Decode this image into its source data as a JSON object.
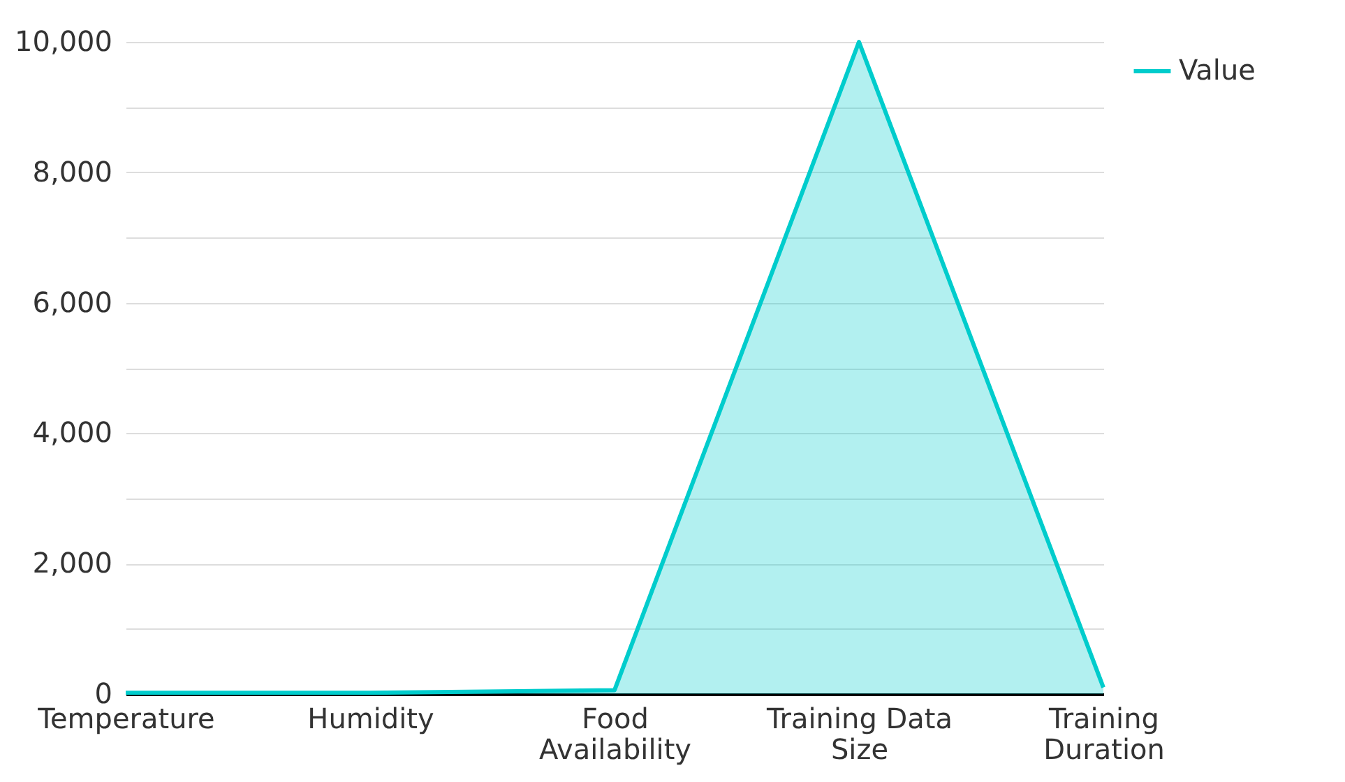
{
  "chart_data": {
    "type": "area",
    "categories": [
      "Temperature",
      "Humidity",
      "Food Availability",
      "Training Data Size",
      "Training Duration"
    ],
    "series": [
      {
        "name": "Value",
        "color": "#00cccc",
        "values": [
          20,
          20,
          60,
          10000,
          100
        ]
      }
    ],
    "ylim": [
      0,
      10000
    ],
    "yticks": [
      0,
      {
        "value": 1000,
        "label": null
      },
      {
        "value": 2000,
        "label": "2,000"
      },
      {
        "value": 3000,
        "label": null
      },
      {
        "value": 4000,
        "label": "4,000"
      },
      {
        "value": 5000,
        "label": null
      },
      {
        "value": 6000,
        "label": "6,000"
      },
      {
        "value": 7000,
        "label": null
      },
      {
        "value": 8000,
        "label": "8,000"
      },
      {
        "value": 9000,
        "label": null
      },
      {
        "value": 10000,
        "label": "10,000"
      }
    ],
    "grid": "y",
    "legend": "top right"
  }
}
